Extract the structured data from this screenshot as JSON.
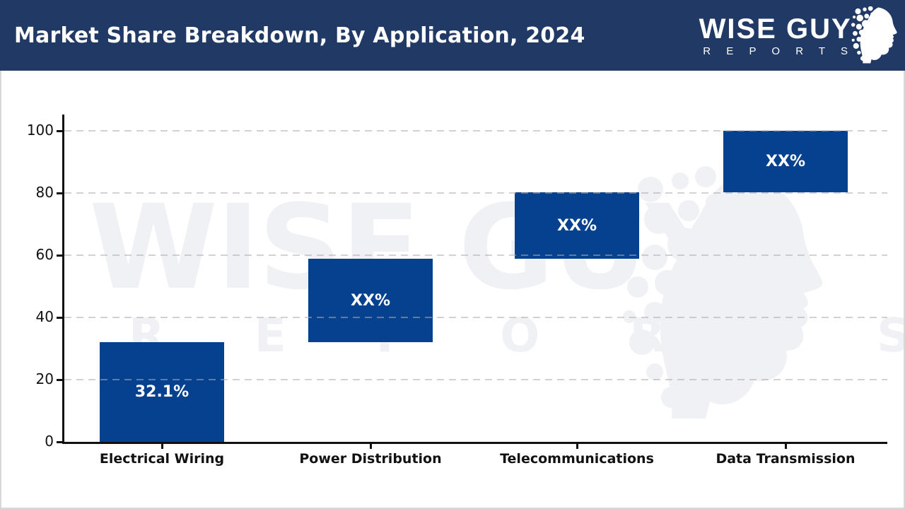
{
  "header": {
    "title": "Market Share Breakdown, By Application, 2024",
    "logo": {
      "line1": "WISE GUY",
      "line2": "R E P O R T S"
    }
  },
  "watermark": {
    "line1": "WISE GUY",
    "line2": "R E P O R T S"
  },
  "colors": {
    "header_bg": "#213965",
    "bar": "#05418f",
    "bar_label_text": "#ffffff",
    "axis": "#111111",
    "gridline": "#d9d9d9",
    "watermark": "#f0f1f4"
  },
  "chart_data": {
    "type": "bar",
    "subtype": "waterfall",
    "title": "Market Share Breakdown, By Application, 2024",
    "xlabel": "",
    "ylabel": "",
    "ylim": [
      0,
      100
    ],
    "yticks": [
      0,
      20,
      40,
      60,
      80,
      100
    ],
    "grid": "horizontal-dashed",
    "legend": "none",
    "categories": [
      "Electrical Wiring",
      "Power Distribution",
      "Telecommunications",
      "Data Transmission"
    ],
    "bars": [
      {
        "category": "Electrical Wiring",
        "start": 0,
        "end": 32.1,
        "label": "32.1%"
      },
      {
        "category": "Power Distribution",
        "start": 32.1,
        "end": 58.8,
        "label": "XX%"
      },
      {
        "category": "Telecommunications",
        "start": 58.8,
        "end": 80.2,
        "label": "XX%"
      },
      {
        "category": "Data Transmission",
        "start": 80.2,
        "end": 100,
        "label": "XX%"
      }
    ]
  }
}
